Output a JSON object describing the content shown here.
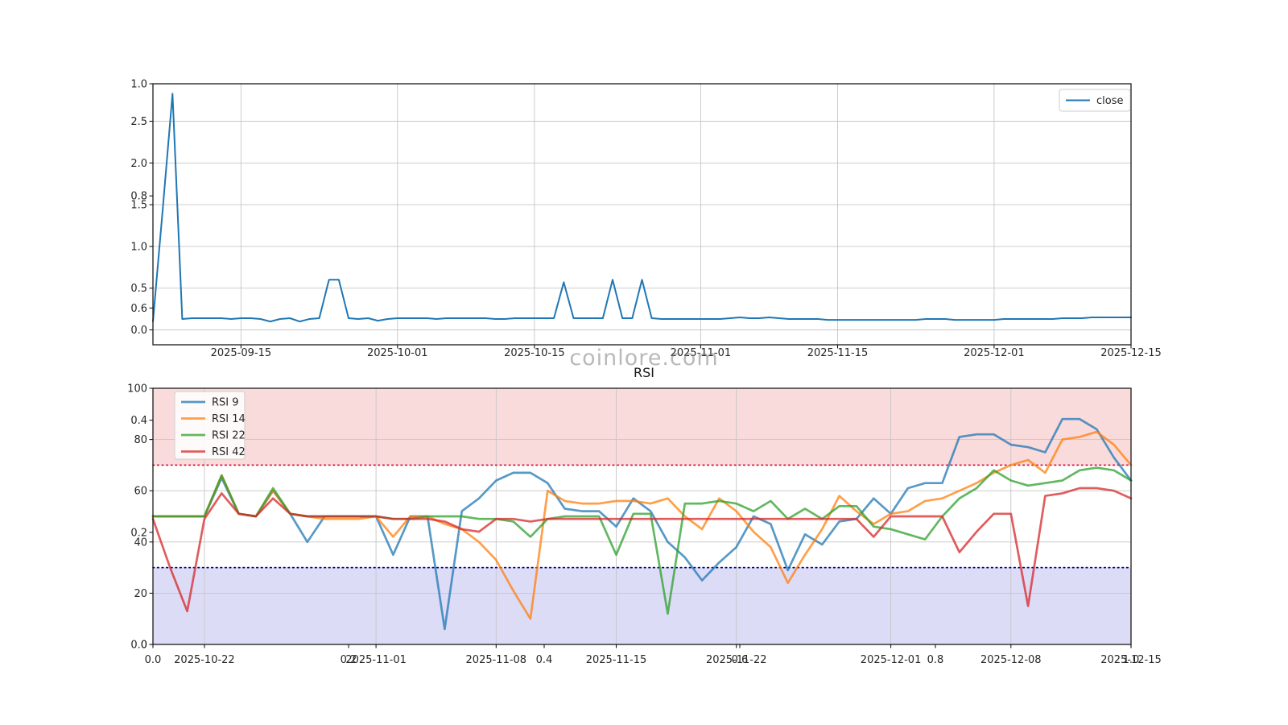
{
  "watermark": {
    "text": "coinlore.com",
    "color": "#7f7f7f"
  },
  "overlay_axis": {
    "x_tick_labels": [
      "0.0",
      "0.2",
      "0.4",
      "0.6",
      "0.8",
      "1.0"
    ],
    "y_tick_labels": [
      "0.0",
      "0.2",
      "0.4",
      "0.6",
      "0.8",
      "1.0"
    ]
  },
  "chart_data": [
    {
      "type": "line",
      "title": "",
      "grid": true,
      "legend": {
        "position": "upper right",
        "entries": [
          "close"
        ]
      },
      "x_tick_labels": [
        "2025-09-15",
        "2025-10-01",
        "2025-10-15",
        "2025-11-01",
        "2025-11-15",
        "2025-12-01",
        "2025-12-15"
      ],
      "y_tick_values": [
        0.0,
        0.5,
        1.0,
        1.5,
        2.0,
        2.5
      ],
      "y_tick_labels": [
        "0.0",
        "0.5",
        "1.0",
        "1.5",
        "2.0",
        "2.5"
      ],
      "ylim": [
        -0.18,
        2.95
      ],
      "series": [
        {
          "name": "close",
          "color": "#1f77b4",
          "opacity": 1,
          "width": 2,
          "start_date": "2025-09-06",
          "end_date": "2025-12-15",
          "freq": "daily",
          "values": [
            0.1,
            1.45,
            2.83,
            0.13,
            0.14,
            0.14,
            0.14,
            0.14,
            0.13,
            0.14,
            0.14,
            0.13,
            0.1,
            0.13,
            0.14,
            0.1,
            0.13,
            0.14,
            0.6,
            0.6,
            0.14,
            0.13,
            0.14,
            0.11,
            0.13,
            0.14,
            0.14,
            0.14,
            0.14,
            0.13,
            0.14,
            0.14,
            0.14,
            0.14,
            0.14,
            0.13,
            0.13,
            0.14,
            0.14,
            0.14,
            0.14,
            0.14,
            0.57,
            0.14,
            0.14,
            0.14,
            0.14,
            0.6,
            0.14,
            0.14,
            0.6,
            0.14,
            0.13,
            0.13,
            0.13,
            0.13,
            0.13,
            0.13,
            0.13,
            0.14,
            0.15,
            0.14,
            0.14,
            0.15,
            0.14,
            0.13,
            0.13,
            0.13,
            0.13,
            0.12,
            0.12,
            0.12,
            0.12,
            0.12,
            0.12,
            0.12,
            0.12,
            0.12,
            0.12,
            0.13,
            0.13,
            0.13,
            0.12,
            0.12,
            0.12,
            0.12,
            0.12,
            0.13,
            0.13,
            0.13,
            0.13,
            0.13,
            0.13,
            0.14,
            0.14,
            0.14,
            0.15,
            0.15,
            0.15,
            0.15,
            0.15
          ]
        }
      ]
    },
    {
      "type": "line",
      "title": "RSI",
      "grid": true,
      "legend": {
        "position": "upper left",
        "entries": [
          "RSI 9",
          "RSI 14",
          "RSI 22",
          "RSI 42"
        ]
      },
      "x_tick_labels": [
        "2025-10-22",
        "2025-11-01",
        "2025-11-08",
        "2025-11-15",
        "2025-11-22",
        "2025-12-01",
        "2025-12-08",
        "2025-12-15"
      ],
      "y_tick_values": [
        0,
        20,
        40,
        60,
        80,
        100
      ],
      "y_tick_labels": [
        "0",
        "20",
        "40",
        "60",
        "80",
        "100"
      ],
      "ylim": [
        0,
        100
      ],
      "bands": [
        {
          "name": "overbought-band",
          "from": 70,
          "to": 100,
          "color": "#fadbdb"
        },
        {
          "name": "oversold-band",
          "from": 0,
          "to": 30,
          "color": "#dddcf6"
        }
      ],
      "hlines": [
        {
          "name": "overbought-line",
          "y": 70,
          "color": "#dc143c",
          "style": "dotted"
        },
        {
          "name": "oversold-line",
          "y": 30,
          "color": "#00008b",
          "style": "dotted"
        }
      ],
      "series": [
        {
          "name": "RSI 9",
          "color": "#1f77b4",
          "opacity": 0.75,
          "width": 2.7,
          "start_date": "2025-10-19",
          "end_date": "2025-12-15",
          "freq": "daily",
          "values": [
            50,
            50,
            50,
            50,
            65,
            51,
            50,
            60,
            51,
            40,
            50,
            50,
            50,
            50,
            35,
            50,
            50,
            6,
            52,
            57,
            64,
            67,
            67,
            63,
            53,
            52,
            52,
            46,
            57,
            52,
            40,
            34,
            25,
            32,
            38,
            50,
            47,
            29,
            43,
            39,
            48,
            49,
            57,
            51,
            61,
            63,
            63,
            81,
            82,
            82,
            78,
            77,
            75,
            88,
            88,
            84,
            73,
            64
          ]
        },
        {
          "name": "RSI 14",
          "color": "#ff7f0e",
          "opacity": 0.75,
          "width": 2.7,
          "start_date": "2025-10-19",
          "end_date": "2025-12-15",
          "freq": "daily",
          "values": [
            50,
            50,
            50,
            50,
            66,
            51,
            50,
            60,
            51,
            50,
            49,
            49,
            49,
            50,
            42,
            50,
            50,
            47,
            45,
            40,
            33,
            21,
            10,
            60,
            56,
            55,
            55,
            56,
            56,
            55,
            57,
            50,
            45,
            57,
            52,
            44,
            38,
            24,
            35,
            45,
            58,
            52,
            47,
            51,
            52,
            56,
            57,
            60,
            63,
            67,
            70,
            72,
            67,
            80,
            81,
            83,
            78,
            70
          ]
        },
        {
          "name": "RSI 22",
          "color": "#2ca02c",
          "opacity": 0.75,
          "width": 2.7,
          "start_date": "2025-10-19",
          "end_date": "2025-12-15",
          "freq": "daily",
          "values": [
            50,
            50,
            50,
            50,
            66,
            51,
            50,
            61,
            51,
            50,
            50,
            50,
            50,
            50,
            49,
            49,
            50,
            50,
            50,
            49,
            49,
            48,
            42,
            49,
            50,
            50,
            50,
            35,
            51,
            51,
            12,
            55,
            55,
            56,
            55,
            52,
            56,
            49,
            53,
            49,
            54,
            54,
            46,
            45,
            43,
            41,
            50,
            57,
            61,
            68,
            64,
            62,
            63,
            64,
            68,
            69,
            68,
            64
          ]
        },
        {
          "name": "RSI 42",
          "color": "#d62728",
          "opacity": 0.75,
          "width": 2.7,
          "start_date": "2025-10-19",
          "end_date": "2025-12-15",
          "freq": "daily",
          "values": [
            49,
            30,
            13,
            49,
            59,
            51,
            50,
            57,
            51,
            50,
            50,
            50,
            50,
            50,
            49,
            49,
            49,
            48,
            45,
            44,
            49,
            49,
            48,
            49,
            49,
            49,
            49,
            49,
            49,
            49,
            49,
            49,
            49,
            49,
            49,
            49,
            49,
            49,
            49,
            49,
            49,
            49,
            42,
            50,
            50,
            50,
            50,
            36,
            44,
            51,
            51,
            15,
            58,
            59,
            61,
            61,
            60,
            57
          ]
        }
      ]
    }
  ]
}
